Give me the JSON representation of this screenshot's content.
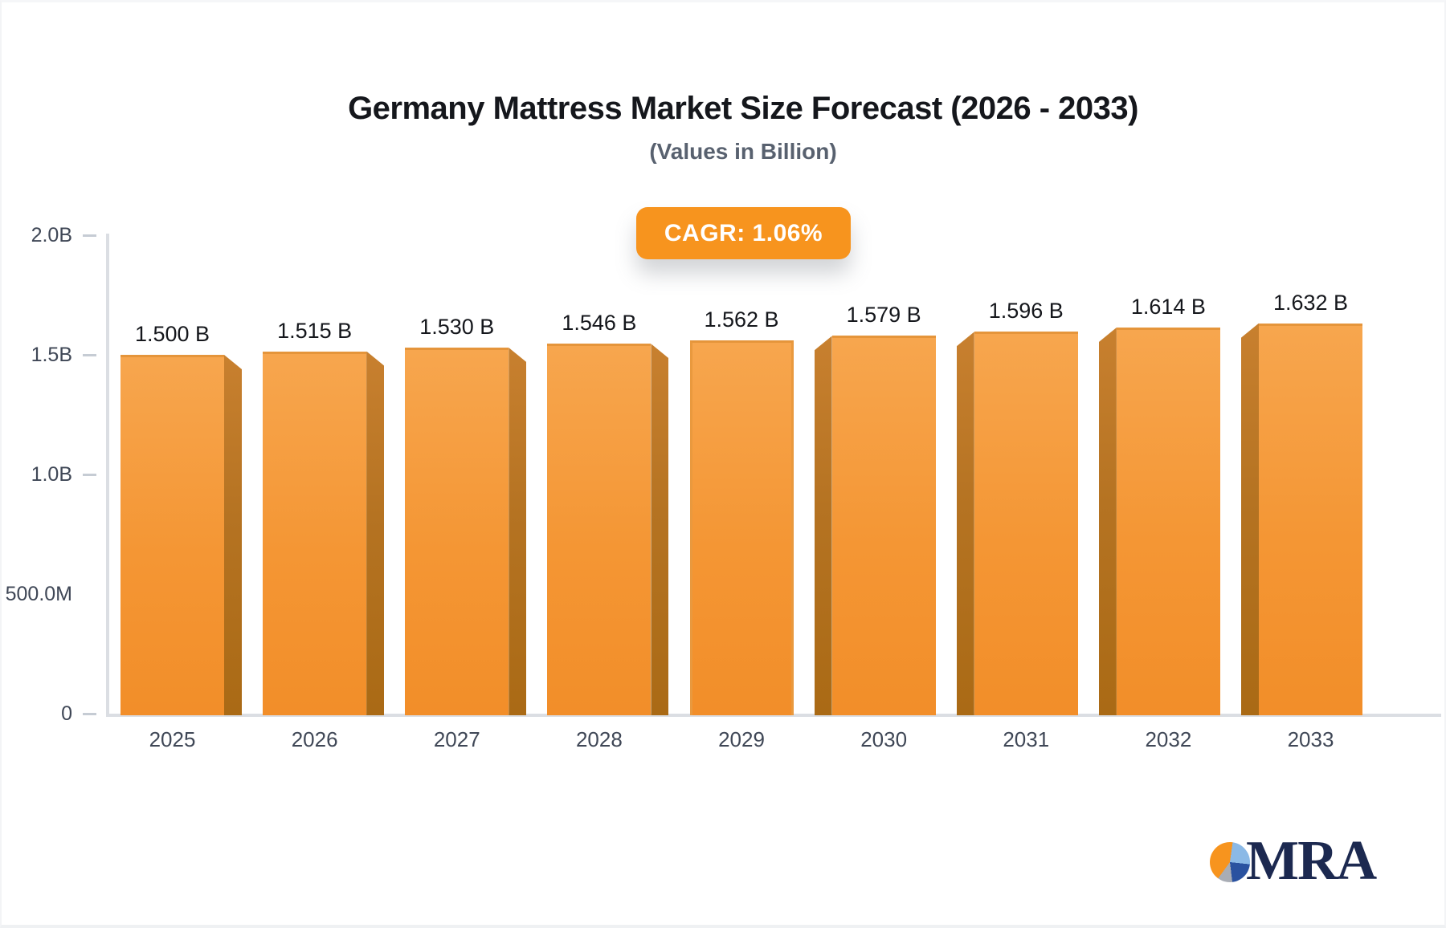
{
  "header": {
    "title": "Germany Mattress Market Size Forecast (2026 - 2033)",
    "subtitle": "(Values in Billion)",
    "cagr_label": "CAGR: 1.06%"
  },
  "chart_data": {
    "type": "bar",
    "title": "Germany Mattress Market Size Forecast (2026 - 2033)",
    "subtitle": "(Values in Billion)",
    "annotation": "CAGR: 1.06%",
    "categories": [
      "2025",
      "2026",
      "2027",
      "2028",
      "2029",
      "2030",
      "2031",
      "2032",
      "2033"
    ],
    "values": [
      1.5,
      1.515,
      1.53,
      1.546,
      1.562,
      1.579,
      1.596,
      1.614,
      1.632
    ],
    "value_labels": [
      "1.500 B",
      "1.515 B",
      "1.530 B",
      "1.546 B",
      "1.562 B",
      "1.579 B",
      "1.596 B",
      "1.614 B",
      "1.632 B"
    ],
    "bar_3d_side": [
      "right",
      "right",
      "right",
      "right",
      "none",
      "left",
      "left",
      "left",
      "left"
    ],
    "xlabel": "",
    "ylabel": "",
    "ylim": [
      0,
      2.0
    ],
    "y_ticks": [
      {
        "label": "2.0B",
        "value": 2.0,
        "dash": true
      },
      {
        "label": "1.5B",
        "value": 1.5,
        "dash": true
      },
      {
        "label": "1.0B",
        "value": 1.0,
        "dash": true
      },
      {
        "label": "500.0M",
        "value": 0.5,
        "dash": false
      },
      {
        "label": "0",
        "value": 0.0,
        "dash": true
      }
    ],
    "grid": false,
    "legend": false
  },
  "colors": {
    "accent_orange": "#f7941e",
    "bar_face_top": "#f7a64e",
    "bar_face_bottom": "#f28e29",
    "bar_side_top": "#c8802f",
    "bar_side_bottom": "#aa6a15",
    "axis_line": "#dbdee3",
    "tick_text": "#3f4756",
    "value_text": "#15171c",
    "logo_navy": "#1c2950"
  },
  "logo": {
    "text": "MRA"
  }
}
